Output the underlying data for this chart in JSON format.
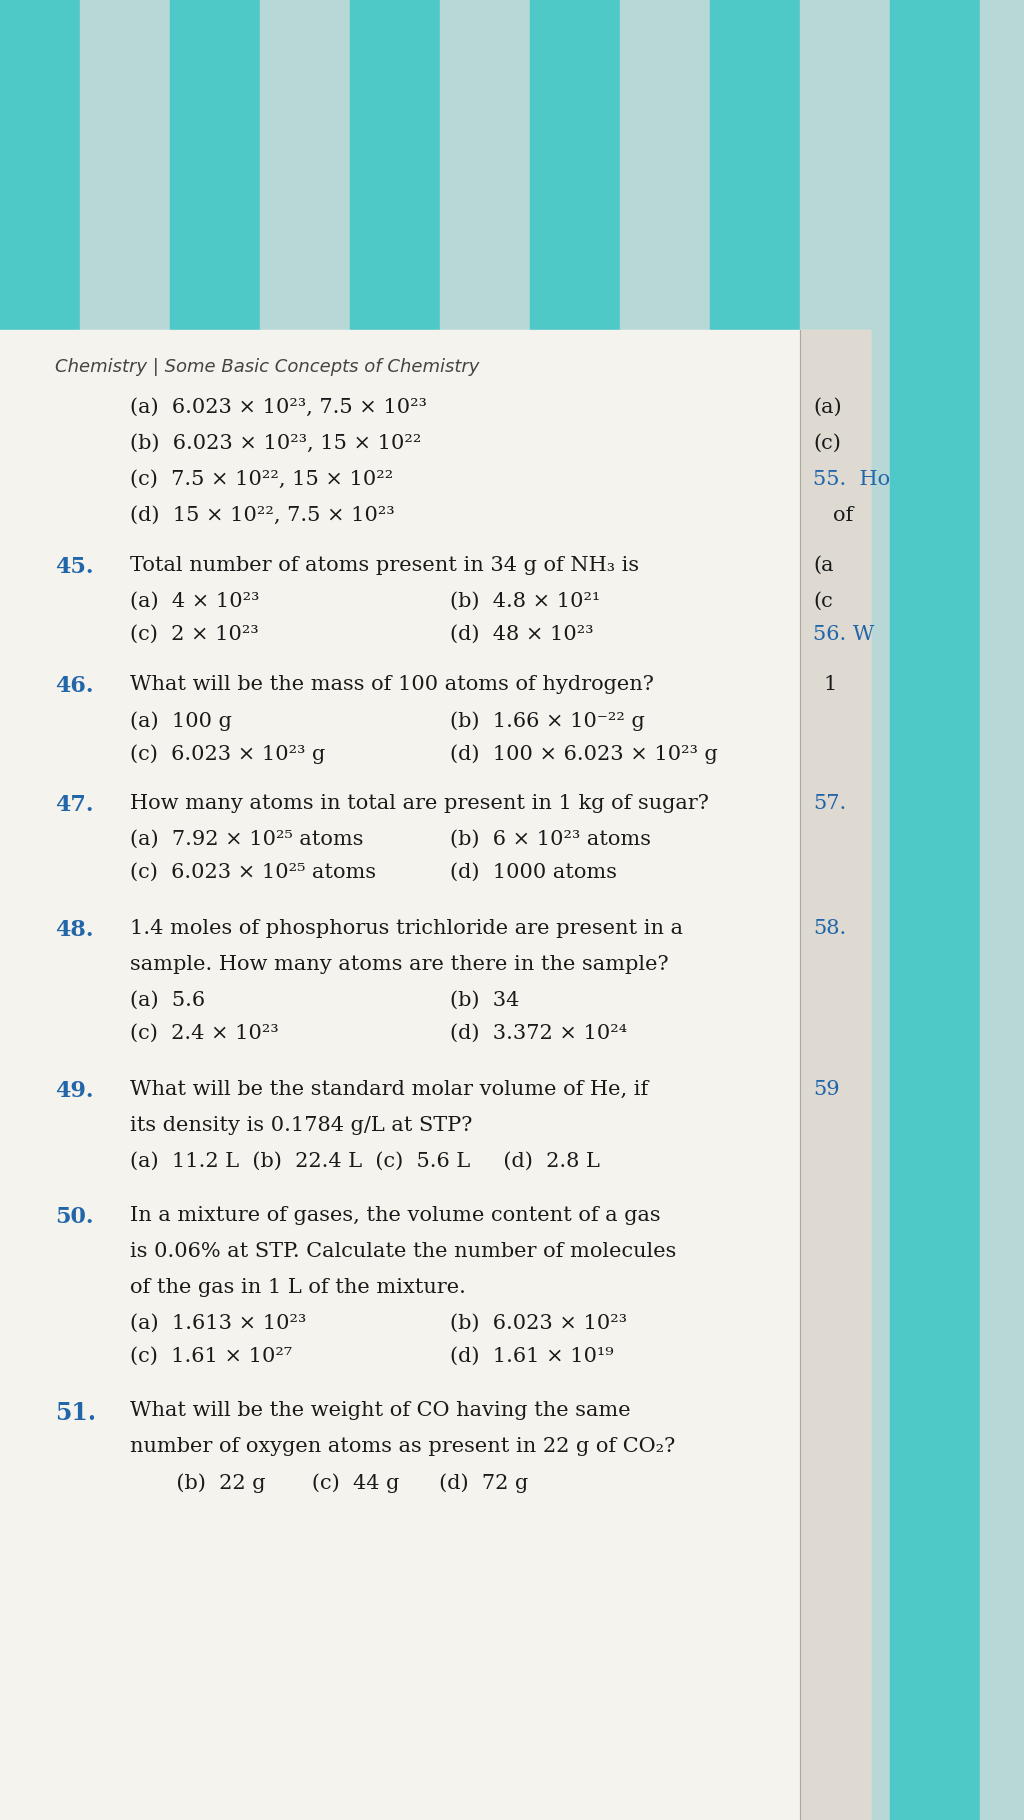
{
  "stripe_color1": "#4fc8c8",
  "stripe_color2": "#b8d8d8",
  "page_bg": "#f5f3ee",
  "page_right_bg": "#dedad2",
  "header": "Chemistry | Some Basic Concepts of Chemistry",
  "number_color": "#2266aa",
  "text_color": "#1a1a1a",
  "header_color": "#444444",
  "pre_options": [
    "(a)  6.023 × 10²³, 7.5 × 10²³",
    "(b)  6.023 × 10²³, 15 × 10²²",
    "(c)  7.5 × 10²², 15 × 10²²",
    "(d)  15 × 10²², 7.5 × 10²³"
  ],
  "right_col": [
    {
      "y_key": "pre_a",
      "text": "(a)",
      "color": "#1a1a1a"
    },
    {
      "y_key": "pre_b",
      "text": "(c)",
      "color": "#1a1a1a"
    },
    {
      "y_key": "pre_c_num",
      "text": "55.",
      "color": "#2266aa"
    },
    {
      "y_key": "pre_c_txt",
      "text": "Ho",
      "color": "#1a1a1a"
    },
    {
      "y_key": "pre_d",
      "text": "of",
      "color": "#1a1a1a"
    },
    {
      "y_key": "q45_a",
      "text": "(a",
      "color": "#1a1a1a"
    },
    {
      "y_key": "q45_c",
      "text": "(c",
      "color": "#1a1a1a"
    },
    {
      "y_key": "q45_d_56",
      "text": "56. W",
      "color": "#2266aa"
    },
    {
      "y_key": "q46_right1",
      "text": "1",
      "color": "#1a1a1a"
    },
    {
      "y_key": "q47_num",
      "text": "57.",
      "color": "#2266aa"
    },
    {
      "y_key": "q48_num",
      "text": "58.",
      "color": "#2266aa"
    },
    {
      "y_key": "q49_num",
      "text": "59",
      "color": "#2266aa"
    }
  ],
  "q45_text": "Total number of atoms present in 34 g of NH₃ is",
  "q45_opts": [
    [
      "(a)  4 × 10²³",
      "(b)  4.8 × 10²¹"
    ],
    [
      "(c)  2 × 10²³",
      "(d)  48 × 10²³"
    ]
  ],
  "q46_text": "What will be the mass of 100 atoms of hydrogen?",
  "q46_opts": [
    [
      "(a)  100 g",
      "(b)  1.66 × 10⁻²² g"
    ],
    [
      "(c)  6.023 × 10²³ g",
      "(d)  100 × 6.023 × 10²³ g"
    ]
  ],
  "q47_text": "How many atoms in total are present in 1 kg of sugar?",
  "q47_opts": [
    [
      "(a)  7.92 × 10²⁵ atoms",
      "(b)  6 × 10²³ atoms"
    ],
    [
      "(c)  6.023 × 10²⁵ atoms",
      "(d)  1000 atoms"
    ]
  ],
  "q48_text1": "1.4 moles of phosphorus trichloride are present in a",
  "q48_text2": "sample. How many atoms are there in the sample?",
  "q48_opts": [
    [
      "(a)  5.6",
      "(b)  34"
    ],
    [
      "(c)  2.4 × 10²³",
      "(d)  3.372 × 10²⁴"
    ]
  ],
  "q49_text1": "What will be the standard molar volume of He, if",
  "q49_text2": "its density is 0.1784 g/L at STP?",
  "q49_opts": "(a)  11.2 L  (b)  22.4 L  (c)  5.6 L     (d)  2.8 L",
  "q50_text1": "In a mixture of gases, the volume content of a gas",
  "q50_text2": "is 0.06% at STP. Calculate the number of molecules",
  "q50_text3": "of the gas in 1 L of the mixture.",
  "q50_opts": [
    [
      "(a)  1.613 × 10²³",
      "(b)  6.023 × 10²³"
    ],
    [
      "(c)  1.61 × 10²⁷",
      "(d)  1.61 × 10¹⁹"
    ]
  ],
  "q51_text1": "What will be the weight of CO having the same",
  "q51_text2": "number of oxygen atoms as present in 22 g of CO₂?",
  "q51_opts": "       (b)  22 g       (c)  44 g      (d)  72 g"
}
